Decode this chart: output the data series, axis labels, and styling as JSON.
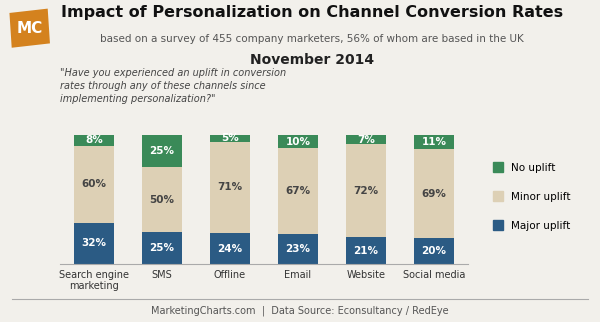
{
  "title": "Impact of Personalization on Channel Conversion Rates",
  "subtitle": "based on a survey of 455 company marketers, 56% of whom are based in the UK",
  "date_label": "November 2014",
  "question": "\"Have you experienced an uplift in conversion\nrates through any of these channels since\nimplementing personalization?\"",
  "footer": "MarketingCharts.com  |  Data Source: Econsultancy / RedEye",
  "categories": [
    "Search engine\nmarketing",
    "SMS",
    "Offline",
    "Email",
    "Website",
    "Social media"
  ],
  "major_uplift": [
    32,
    25,
    24,
    23,
    21,
    20
  ],
  "minor_uplift": [
    60,
    50,
    71,
    67,
    72,
    69
  ],
  "no_uplift": [
    8,
    25,
    5,
    10,
    7,
    11
  ],
  "color_major": "#2b5b84",
  "color_minor": "#ddd0b5",
  "color_no": "#3a8a58",
  "background_color": "#f2f0eb",
  "title_fontsize": 11.5,
  "subtitle_fontsize": 7.5,
  "date_fontsize": 10,
  "bar_label_fontsize": 7.5,
  "footer_fontsize": 7.0,
  "mc_box_color": "#d4821e",
  "legend_fontsize": 7.5,
  "question_fontsize": 7.0
}
